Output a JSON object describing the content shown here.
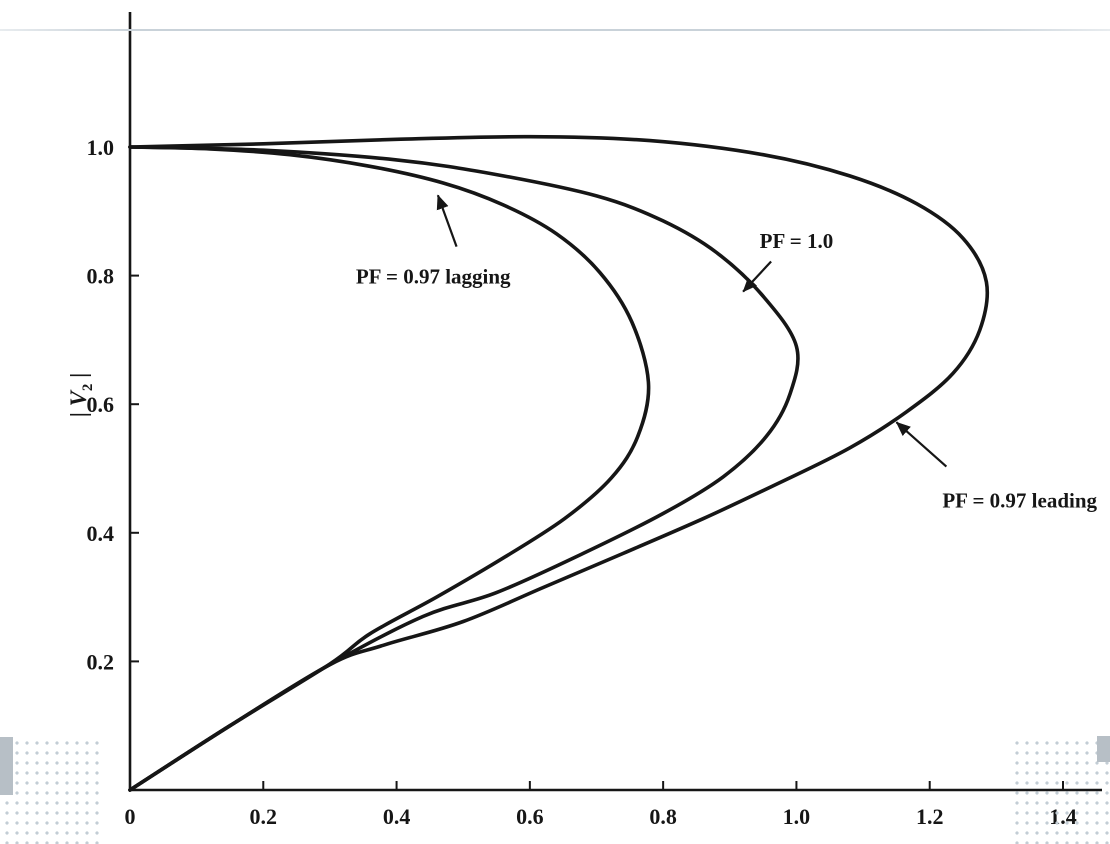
{
  "page": {
    "background": "#ffffff",
    "top_rule_color": "#c9d2d9",
    "corner_dot_color": "#c3cdd5",
    "edge_tab_color": "#b7bfc6"
  },
  "chart_data": {
    "type": "line",
    "title": "",
    "xlabel": "",
    "ylabel": {
      "prefix": "| ",
      "variable": "V",
      "subscript": "2",
      "suffix": " |"
    },
    "xlim": [
      0,
      1.4
    ],
    "ylim": [
      0,
      1.0
    ],
    "x_ticks": [
      0,
      0.2,
      0.4,
      0.6,
      0.8,
      1.0,
      1.2,
      1.4
    ],
    "x_tick_labels": [
      "0",
      "0.2",
      "0.4",
      "0.6",
      "0.8",
      "1.0",
      "1.2",
      "1.4"
    ],
    "y_ticks": [
      0.2,
      0.4,
      0.6,
      0.8,
      1.0
    ],
    "y_tick_labels": [
      "0.2",
      "0.4",
      "0.6",
      "0.8",
      "1.0"
    ],
    "grid": false,
    "legend": "inline-annotations",
    "curve_color": "#161616",
    "series": [
      {
        "name": "PF = 0.97 lagging",
        "points": [
          [
            0,
            1.0
          ],
          [
            0.12,
            0.997
          ],
          [
            0.24,
            0.988
          ],
          [
            0.36,
            0.97
          ],
          [
            0.47,
            0.944
          ],
          [
            0.56,
            0.91
          ],
          [
            0.64,
            0.865
          ],
          [
            0.705,
            0.805
          ],
          [
            0.753,
            0.728
          ],
          [
            0.778,
            0.632
          ],
          [
            0.762,
            0.55
          ],
          [
            0.722,
            0.485
          ],
          [
            0.652,
            0.422
          ],
          [
            0.562,
            0.362
          ],
          [
            0.46,
            0.3
          ],
          [
            0.36,
            0.243
          ],
          [
            0.3,
            0.196
          ],
          [
            0.15,
            0.1
          ],
          [
            0,
            0
          ]
        ]
      },
      {
        "name": "PF = 1.0",
        "points": [
          [
            0,
            1.0
          ],
          [
            0.2,
            0.995
          ],
          [
            0.4,
            0.98
          ],
          [
            0.55,
            0.957
          ],
          [
            0.7,
            0.924
          ],
          [
            0.8,
            0.885
          ],
          [
            0.88,
            0.836
          ],
          [
            0.95,
            0.768
          ],
          [
            1.0,
            0.69
          ],
          [
            0.99,
            0.615
          ],
          [
            0.955,
            0.55
          ],
          [
            0.89,
            0.487
          ],
          [
            0.8,
            0.43
          ],
          [
            0.68,
            0.368
          ],
          [
            0.55,
            0.307
          ],
          [
            0.44,
            0.27
          ],
          [
            0.3,
            0.195
          ],
          [
            0.15,
            0.1
          ],
          [
            0,
            0
          ]
        ]
      },
      {
        "name": "PF = 0.97 leading",
        "points": [
          [
            0,
            1.0
          ],
          [
            0.2,
            1.005
          ],
          [
            0.4,
            1.012
          ],
          [
            0.6,
            1.016
          ],
          [
            0.78,
            1.01
          ],
          [
            0.95,
            0.988
          ],
          [
            1.08,
            0.955
          ],
          [
            1.18,
            0.912
          ],
          [
            1.25,
            0.858
          ],
          [
            1.285,
            0.79
          ],
          [
            1.275,
            0.715
          ],
          [
            1.235,
            0.648
          ],
          [
            1.165,
            0.588
          ],
          [
            1.08,
            0.532
          ],
          [
            0.975,
            0.478
          ],
          [
            0.86,
            0.422
          ],
          [
            0.74,
            0.368
          ],
          [
            0.62,
            0.315
          ],
          [
            0.5,
            0.262
          ],
          [
            0.38,
            0.225
          ],
          [
            0.3,
            0.195
          ],
          [
            0.15,
            0.1
          ],
          [
            0,
            0
          ]
        ]
      }
    ],
    "annotations": [
      {
        "label": "PF = 0.97 lagging",
        "x": 0.455,
        "y": 0.8,
        "arrow": {
          "x1": 0.49,
          "y1": 0.845,
          "x2": 0.462,
          "y2": 0.925
        }
      },
      {
        "label": "PF = 1.0",
        "x": 1.0,
        "y": 0.855,
        "arrow": {
          "x1": 0.962,
          "y1": 0.822,
          "x2": 0.92,
          "y2": 0.775
        }
      },
      {
        "label": "PF = 0.97 leading",
        "x": 1.335,
        "y": 0.452,
        "arrow": {
          "x1": 1.225,
          "y1": 0.503,
          "x2": 1.15,
          "y2": 0.572
        }
      }
    ]
  }
}
